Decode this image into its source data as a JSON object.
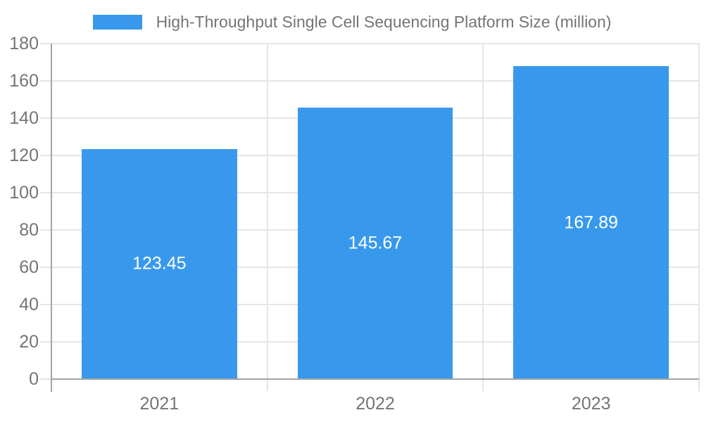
{
  "legend": {
    "label": "High-Throughput Single Cell Sequencing Platform Size (million)"
  },
  "chart_data": {
    "type": "bar",
    "categories": [
      "2021",
      "2022",
      "2023"
    ],
    "values": [
      123.45,
      145.67,
      167.89
    ],
    "value_labels": [
      "123.45",
      "145.67",
      "167.89"
    ],
    "series_name": "High-Throughput Single Cell Sequencing Platform Size (million)",
    "title": "",
    "xlabel": "",
    "ylabel": "",
    "ylim": [
      0,
      180
    ],
    "ytick_step": 20,
    "ytick_labels": [
      "0",
      "20",
      "40",
      "60",
      "80",
      "100",
      "120",
      "140",
      "160",
      "180"
    ],
    "grid": true,
    "legend_position": "top"
  },
  "colors": {
    "bar": "#3899ec",
    "axis_text": "#757575",
    "grid_line": "#e5e5e5",
    "axis_line": "#a3a3a3",
    "value_label": "#ffffff",
    "background": "#ffffff"
  }
}
